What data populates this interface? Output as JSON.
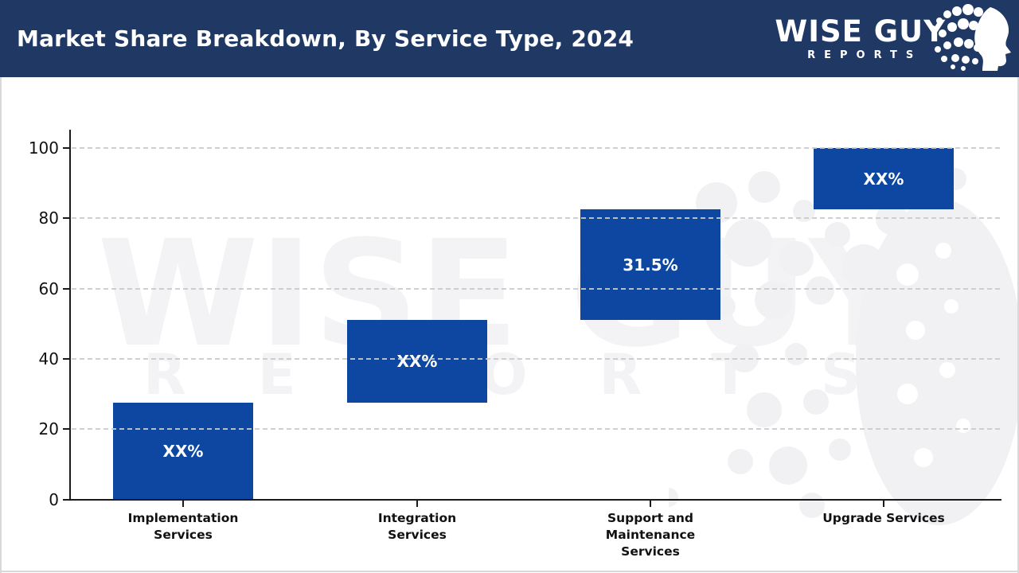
{
  "header": {
    "title": "Market Share Breakdown, By Service Type, 2024",
    "logo": {
      "name_line": "WISE GUY",
      "reports_line": "REPORTS"
    }
  },
  "watermark": {
    "name_line": "WISE GUY",
    "reports_line": "REPORTS"
  },
  "colors": {
    "header_bg": "#1f3864",
    "bar": "#0d47a1",
    "grid": "#cbcbcb",
    "axis": "#1a1a1a",
    "bar_label": "#ffffff",
    "watermark": "#f3f3f6"
  },
  "chart_data": {
    "type": "bar",
    "subtype": "waterfall",
    "title": "Market Share Breakdown, By Service Type, 2024",
    "categories": [
      [
        "Implementation",
        "Services"
      ],
      [
        "Integration",
        "Services"
      ],
      [
        "Support and",
        "Maintenance",
        "Services"
      ],
      [
        "Upgrade Services"
      ]
    ],
    "segments": [
      {
        "category": "Implementation Services",
        "label": "XX%",
        "start": 0,
        "end": 27.5,
        "value": 27.5
      },
      {
        "category": "Integration Services",
        "label": "XX%",
        "start": 27.5,
        "end": 51,
        "value": 23.5
      },
      {
        "category": "Support and Maintenance Services",
        "label": "31.5%",
        "start": 51,
        "end": 82.5,
        "value": 31.5
      },
      {
        "category": "Upgrade Services",
        "label": "XX%",
        "start": 82.5,
        "end": 100,
        "value": 17.5
      }
    ],
    "yticks": [
      "0",
      "20",
      "40",
      "60",
      "80",
      "100"
    ],
    "ylim": [
      0,
      100
    ],
    "xlabel": "",
    "ylabel": "",
    "grid": "horizontal-dashed",
    "legend": "none"
  }
}
